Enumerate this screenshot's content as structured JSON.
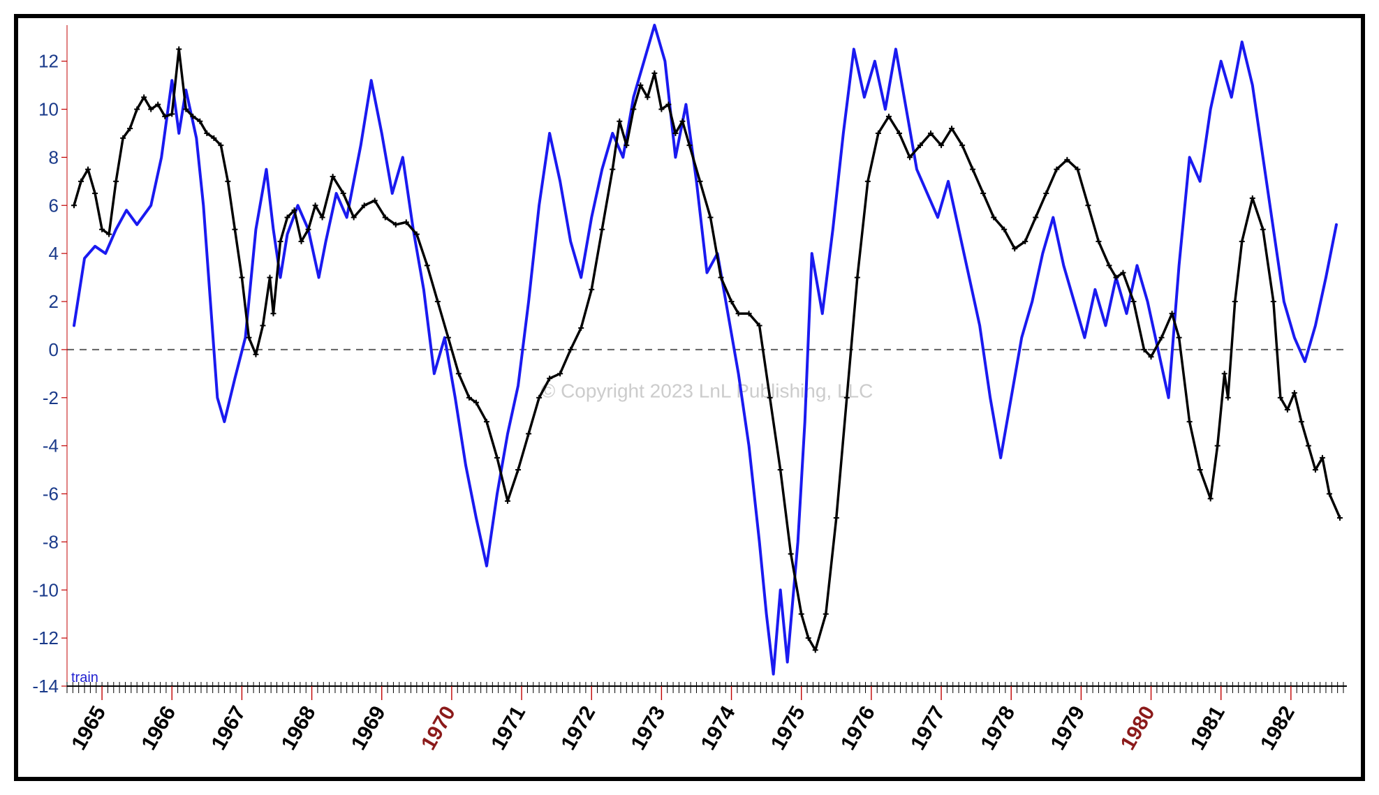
{
  "chart": {
    "type": "line",
    "background_color": "#ffffff",
    "border_color": "#000000",
    "border_width": 6,
    "plot": {
      "x_range": [
        1964.5,
        1982.8
      ],
      "y_range": [
        -14,
        13.5
      ]
    },
    "y_axis": {
      "ticks": [
        -14,
        -12,
        -10,
        -8,
        -6,
        -4,
        -2,
        0,
        2,
        4,
        6,
        8,
        10,
        12
      ],
      "tick_color": "#c00000",
      "tick_length": 8,
      "label_color": "#1a3a8a",
      "label_fontsize": 26,
      "line_color": "#c00000",
      "line_width": 1
    },
    "x_axis": {
      "years": [
        1965,
        1966,
        1967,
        1968,
        1969,
        1970,
        1971,
        1972,
        1973,
        1974,
        1975,
        1976,
        1977,
        1978,
        1979,
        1980,
        1981,
        1982
      ],
      "highlight_years": [
        1970,
        1980
      ],
      "label_color": "#000000",
      "highlight_color": "#8b1a1a",
      "label_fontsize": 30,
      "label_fontweight": "bold",
      "label_rotation": -60,
      "minor_per_year": 12,
      "tick_color_minor": "#000000",
      "tick_color_major": "#c00000",
      "baseline_color": "#000000"
    },
    "zero_line": {
      "color": "#606060",
      "dash": "10,8",
      "width": 2
    },
    "watermark": {
      "text": "© Copyright 2023 LnL Publishing, LLC",
      "color": "#cccccc",
      "fontsize": 28
    },
    "train_label": {
      "text": "train",
      "color": "#2020d0",
      "fontsize": 20
    },
    "series": [
      {
        "name": "blue-series",
        "color": "#1a1af0",
        "width": 4,
        "markers": false,
        "data": [
          [
            1964.6,
            1.0
          ],
          [
            1964.75,
            3.8
          ],
          [
            1964.9,
            4.3
          ],
          [
            1965.05,
            4.0
          ],
          [
            1965.2,
            5.0
          ],
          [
            1965.35,
            5.8
          ],
          [
            1965.5,
            5.2
          ],
          [
            1965.7,
            6.0
          ],
          [
            1965.85,
            8.0
          ],
          [
            1966.0,
            11.2
          ],
          [
            1966.1,
            9.0
          ],
          [
            1966.2,
            10.8
          ],
          [
            1966.35,
            8.8
          ],
          [
            1966.45,
            6.0
          ],
          [
            1966.55,
            2.0
          ],
          [
            1966.65,
            -2.0
          ],
          [
            1966.75,
            -3.0
          ],
          [
            1966.9,
            -1.2
          ],
          [
            1967.05,
            0.5
          ],
          [
            1967.2,
            5.0
          ],
          [
            1967.35,
            7.5
          ],
          [
            1967.45,
            5.0
          ],
          [
            1967.55,
            3.0
          ],
          [
            1967.65,
            4.8
          ],
          [
            1967.8,
            6.0
          ],
          [
            1967.95,
            5.0
          ],
          [
            1968.1,
            3.0
          ],
          [
            1968.2,
            4.5
          ],
          [
            1968.35,
            6.5
          ],
          [
            1968.5,
            5.5
          ],
          [
            1968.7,
            8.5
          ],
          [
            1968.85,
            11.2
          ],
          [
            1969.0,
            9.0
          ],
          [
            1969.15,
            6.5
          ],
          [
            1969.3,
            8.0
          ],
          [
            1969.45,
            5.0
          ],
          [
            1969.6,
            2.5
          ],
          [
            1969.75,
            -1.0
          ],
          [
            1969.9,
            0.5
          ],
          [
            1970.05,
            -2.0
          ],
          [
            1970.2,
            -4.8
          ],
          [
            1970.35,
            -7.0
          ],
          [
            1970.5,
            -9.0
          ],
          [
            1970.65,
            -6.0
          ],
          [
            1970.8,
            -3.5
          ],
          [
            1970.95,
            -1.5
          ],
          [
            1971.1,
            2.0
          ],
          [
            1971.25,
            6.0
          ],
          [
            1971.4,
            9.0
          ],
          [
            1971.55,
            7.0
          ],
          [
            1971.7,
            4.5
          ],
          [
            1971.85,
            3.0
          ],
          [
            1972.0,
            5.5
          ],
          [
            1972.15,
            7.5
          ],
          [
            1972.3,
            9.0
          ],
          [
            1972.45,
            8.0
          ],
          [
            1972.6,
            10.5
          ],
          [
            1972.75,
            12.0
          ],
          [
            1972.9,
            13.5
          ],
          [
            1973.05,
            12.0
          ],
          [
            1973.2,
            8.0
          ],
          [
            1973.35,
            10.2
          ],
          [
            1973.5,
            7.0
          ],
          [
            1973.65,
            3.2
          ],
          [
            1973.8,
            4.0
          ],
          [
            1973.95,
            1.5
          ],
          [
            1974.1,
            -1.0
          ],
          [
            1974.25,
            -4.0
          ],
          [
            1974.4,
            -8.0
          ],
          [
            1974.5,
            -11.0
          ],
          [
            1974.6,
            -13.5
          ],
          [
            1974.7,
            -10.0
          ],
          [
            1974.8,
            -13.0
          ],
          [
            1974.95,
            -8.0
          ],
          [
            1975.05,
            -3.0
          ],
          [
            1975.15,
            4.0
          ],
          [
            1975.3,
            1.5
          ],
          [
            1975.45,
            5.0
          ],
          [
            1975.6,
            9.0
          ],
          [
            1975.75,
            12.5
          ],
          [
            1975.9,
            10.5
          ],
          [
            1976.05,
            12.0
          ],
          [
            1976.2,
            10.0
          ],
          [
            1976.35,
            12.5
          ],
          [
            1976.5,
            10.0
          ],
          [
            1976.65,
            7.5
          ],
          [
            1976.8,
            6.5
          ],
          [
            1976.95,
            5.5
          ],
          [
            1977.1,
            7.0
          ],
          [
            1977.25,
            5.0
          ],
          [
            1977.4,
            3.0
          ],
          [
            1977.55,
            1.0
          ],
          [
            1977.7,
            -2.0
          ],
          [
            1977.85,
            -4.5
          ],
          [
            1978.0,
            -2.0
          ],
          [
            1978.15,
            0.5
          ],
          [
            1978.3,
            2.0
          ],
          [
            1978.45,
            4.0
          ],
          [
            1978.6,
            5.5
          ],
          [
            1978.75,
            3.5
          ],
          [
            1978.9,
            2.0
          ],
          [
            1979.05,
            0.5
          ],
          [
            1979.2,
            2.5
          ],
          [
            1979.35,
            1.0
          ],
          [
            1979.5,
            3.0
          ],
          [
            1979.65,
            1.5
          ],
          [
            1979.8,
            3.5
          ],
          [
            1979.95,
            2.0
          ],
          [
            1980.1,
            0.0
          ],
          [
            1980.25,
            -2.0
          ],
          [
            1980.4,
            3.5
          ],
          [
            1980.55,
            8.0
          ],
          [
            1980.7,
            7.0
          ],
          [
            1980.85,
            10.0
          ],
          [
            1981.0,
            12.0
          ],
          [
            1981.15,
            10.5
          ],
          [
            1981.3,
            12.8
          ],
          [
            1981.45,
            11.0
          ],
          [
            1981.6,
            8.0
          ],
          [
            1981.75,
            5.0
          ],
          [
            1981.9,
            2.0
          ],
          [
            1982.05,
            0.5
          ],
          [
            1982.2,
            -0.5
          ],
          [
            1982.35,
            1.0
          ],
          [
            1982.5,
            3.0
          ],
          [
            1982.65,
            5.2
          ]
        ]
      },
      {
        "name": "black-series",
        "color": "#000000",
        "width": 3.5,
        "markers": true,
        "marker_size": 4,
        "data": [
          [
            1964.6,
            6.0
          ],
          [
            1964.7,
            7.0
          ],
          [
            1964.8,
            7.5
          ],
          [
            1964.9,
            6.5
          ],
          [
            1965.0,
            5.0
          ],
          [
            1965.1,
            4.8
          ],
          [
            1965.2,
            7.0
          ],
          [
            1965.3,
            8.8
          ],
          [
            1965.4,
            9.2
          ],
          [
            1965.5,
            10.0
          ],
          [
            1965.6,
            10.5
          ],
          [
            1965.7,
            10.0
          ],
          [
            1965.8,
            10.2
          ],
          [
            1965.9,
            9.7
          ],
          [
            1966.0,
            9.8
          ],
          [
            1966.1,
            12.5
          ],
          [
            1966.2,
            10.0
          ],
          [
            1966.3,
            9.7
          ],
          [
            1966.4,
            9.5
          ],
          [
            1966.5,
            9.0
          ],
          [
            1966.6,
            8.8
          ],
          [
            1966.7,
            8.5
          ],
          [
            1966.8,
            7.0
          ],
          [
            1966.9,
            5.0
          ],
          [
            1967.0,
            3.0
          ],
          [
            1967.1,
            0.5
          ],
          [
            1967.2,
            -0.2
          ],
          [
            1967.3,
            1.0
          ],
          [
            1967.4,
            3.0
          ],
          [
            1967.45,
            1.5
          ],
          [
            1967.55,
            4.5
          ],
          [
            1967.65,
            5.5
          ],
          [
            1967.75,
            5.8
          ],
          [
            1967.85,
            4.5
          ],
          [
            1967.95,
            5.0
          ],
          [
            1968.05,
            6.0
          ],
          [
            1968.15,
            5.5
          ],
          [
            1968.3,
            7.2
          ],
          [
            1968.45,
            6.5
          ],
          [
            1968.6,
            5.5
          ],
          [
            1968.75,
            6.0
          ],
          [
            1968.9,
            6.2
          ],
          [
            1969.05,
            5.5
          ],
          [
            1969.2,
            5.2
          ],
          [
            1969.35,
            5.3
          ],
          [
            1969.5,
            4.8
          ],
          [
            1969.65,
            3.5
          ],
          [
            1969.8,
            2.0
          ],
          [
            1969.95,
            0.5
          ],
          [
            1970.1,
            -1.0
          ],
          [
            1970.25,
            -2.0
          ],
          [
            1970.35,
            -2.2
          ],
          [
            1970.5,
            -3.0
          ],
          [
            1970.65,
            -4.5
          ],
          [
            1970.8,
            -6.3
          ],
          [
            1970.95,
            -5.0
          ],
          [
            1971.1,
            -3.5
          ],
          [
            1971.25,
            -2.0
          ],
          [
            1971.4,
            -1.2
          ],
          [
            1971.55,
            -1.0
          ],
          [
            1971.7,
            0.0
          ],
          [
            1971.85,
            0.9
          ],
          [
            1972.0,
            2.5
          ],
          [
            1972.15,
            5.0
          ],
          [
            1972.3,
            7.5
          ],
          [
            1972.4,
            9.5
          ],
          [
            1972.5,
            8.5
          ],
          [
            1972.6,
            10.0
          ],
          [
            1972.7,
            11.0
          ],
          [
            1972.8,
            10.5
          ],
          [
            1972.9,
            11.5
          ],
          [
            1973.0,
            10.0
          ],
          [
            1973.1,
            10.2
          ],
          [
            1973.2,
            9.0
          ],
          [
            1973.3,
            9.5
          ],
          [
            1973.4,
            8.5
          ],
          [
            1973.55,
            7.0
          ],
          [
            1973.7,
            5.5
          ],
          [
            1973.85,
            3.0
          ],
          [
            1974.0,
            2.0
          ],
          [
            1974.1,
            1.5
          ],
          [
            1974.25,
            1.5
          ],
          [
            1974.4,
            1.0
          ],
          [
            1974.55,
            -2.0
          ],
          [
            1974.7,
            -5.0
          ],
          [
            1974.85,
            -8.5
          ],
          [
            1975.0,
            -11.0
          ],
          [
            1975.1,
            -12.0
          ],
          [
            1975.2,
            -12.5
          ],
          [
            1975.35,
            -11.0
          ],
          [
            1975.5,
            -7.0
          ],
          [
            1975.65,
            -2.0
          ],
          [
            1975.8,
            3.0
          ],
          [
            1975.95,
            7.0
          ],
          [
            1976.1,
            9.0
          ],
          [
            1976.25,
            9.7
          ],
          [
            1976.4,
            9.0
          ],
          [
            1976.55,
            8.0
          ],
          [
            1976.7,
            8.5
          ],
          [
            1976.85,
            9.0
          ],
          [
            1977.0,
            8.5
          ],
          [
            1977.15,
            9.2
          ],
          [
            1977.3,
            8.5
          ],
          [
            1977.45,
            7.5
          ],
          [
            1977.6,
            6.5
          ],
          [
            1977.75,
            5.5
          ],
          [
            1977.9,
            5.0
          ],
          [
            1978.05,
            4.2
          ],
          [
            1978.2,
            4.5
          ],
          [
            1978.35,
            5.5
          ],
          [
            1978.5,
            6.5
          ],
          [
            1978.65,
            7.5
          ],
          [
            1978.8,
            7.9
          ],
          [
            1978.95,
            7.5
          ],
          [
            1979.1,
            6.0
          ],
          [
            1979.25,
            4.5
          ],
          [
            1979.4,
            3.5
          ],
          [
            1979.5,
            3.0
          ],
          [
            1979.6,
            3.2
          ],
          [
            1979.75,
            2.0
          ],
          [
            1979.9,
            0.0
          ],
          [
            1980.0,
            -0.3
          ],
          [
            1980.15,
            0.5
          ],
          [
            1980.3,
            1.5
          ],
          [
            1980.4,
            0.5
          ],
          [
            1980.55,
            -3.0
          ],
          [
            1980.7,
            -5.0
          ],
          [
            1980.85,
            -6.2
          ],
          [
            1980.95,
            -4.0
          ],
          [
            1981.05,
            -1.0
          ],
          [
            1981.1,
            -2.0
          ],
          [
            1981.2,
            2.0
          ],
          [
            1981.3,
            4.5
          ],
          [
            1981.45,
            6.3
          ],
          [
            1981.6,
            5.0
          ],
          [
            1981.75,
            2.0
          ],
          [
            1981.85,
            -2.0
          ],
          [
            1981.95,
            -2.5
          ],
          [
            1982.05,
            -1.8
          ],
          [
            1982.15,
            -3.0
          ],
          [
            1982.25,
            -4.0
          ],
          [
            1982.35,
            -5.0
          ],
          [
            1982.45,
            -4.5
          ],
          [
            1982.55,
            -6.0
          ],
          [
            1982.7,
            -7.0
          ]
        ]
      }
    ]
  }
}
